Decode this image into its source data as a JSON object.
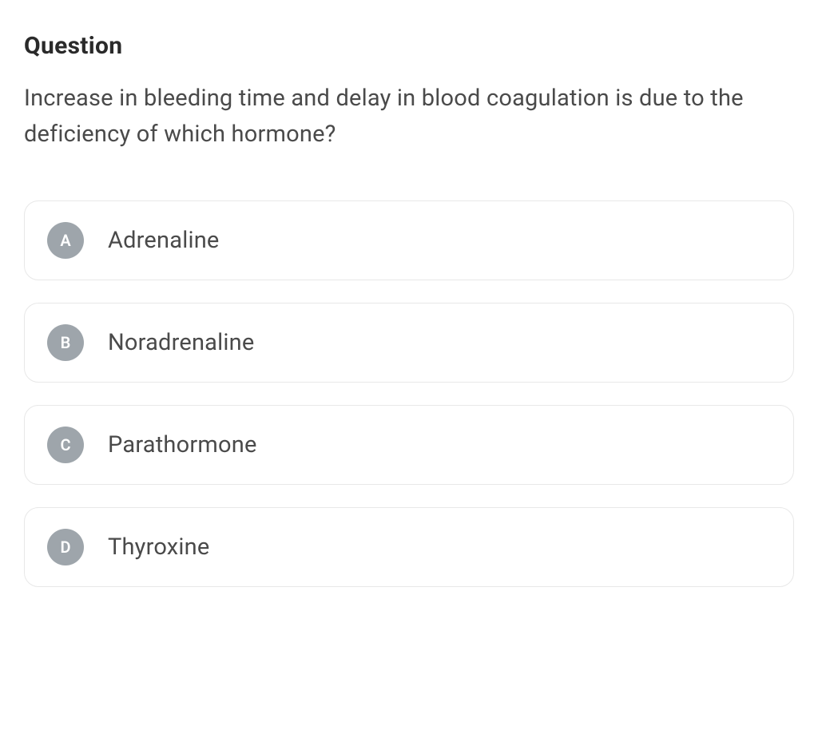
{
  "question": {
    "header": "Question",
    "text": "Increase in bleeding time and delay in blood coagulation is due to the deficiency of which hormone?"
  },
  "options": [
    {
      "letter": "A",
      "label": "Adrenaline"
    },
    {
      "letter": "B",
      "label": "Noradrenaline"
    },
    {
      "letter": "C",
      "label": "Parathormone"
    },
    {
      "letter": "D",
      "label": "Thyroxine"
    }
  ],
  "styles": {
    "header_color": "#2a2a2a",
    "text_color": "#4a4a4a",
    "badge_bg": "#9ea5ab",
    "badge_text": "#ffffff",
    "option_border": "#e8e8e8",
    "background": "#ffffff",
    "header_fontsize": 30,
    "text_fontsize": 29,
    "option_fontsize": 29,
    "badge_fontsize": 20,
    "border_radius": 18,
    "badge_size": 46
  }
}
